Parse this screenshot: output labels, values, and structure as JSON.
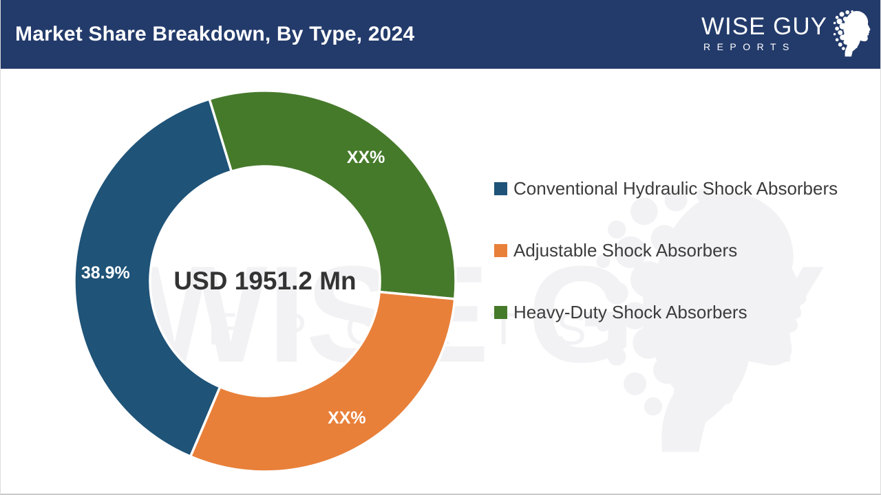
{
  "header": {
    "title": "Market Share Breakdown, By Type, 2024",
    "logo": {
      "brand_line1": "WISE GUY",
      "brand_line2": "REPORTS"
    }
  },
  "watermark": {
    "line1": "WISE GUY",
    "line2": "REPORTS"
  },
  "chart_data": {
    "type": "pie",
    "subtype": "donut",
    "title": "Market Share Breakdown, By Type, 2024",
    "center_label": "USD 1951.2 Mn",
    "start_angle_deg": 203,
    "segments": [
      {
        "name": "Conventional Hydraulic Shock Absorbers",
        "value_pct": 38.9,
        "label": "38.9%",
        "color": "#1F5378"
      },
      {
        "name": "Heavy-Duty Shock Absorbers",
        "value_pct": 31.2,
        "label": "XX%",
        "color": "#467A2B"
      },
      {
        "name": "Adjustable Shock Absorbers",
        "value_pct": 29.9,
        "label": "XX%",
        "color": "#E8803A"
      }
    ],
    "legend_position": "right",
    "legend": [
      {
        "label": "Conventional Hydraulic Shock Absorbers",
        "color": "#1F5378"
      },
      {
        "label": "Adjustable Shock Absorbers",
        "color": "#E8803A"
      },
      {
        "label": "Heavy-Duty Shock Absorbers",
        "color": "#467A2B"
      }
    ]
  },
  "colors": {
    "header_bg": "#233B6B",
    "center_text": "#333333",
    "legend_text": "#3C3C3C",
    "watermark": "#F2F2F4"
  }
}
